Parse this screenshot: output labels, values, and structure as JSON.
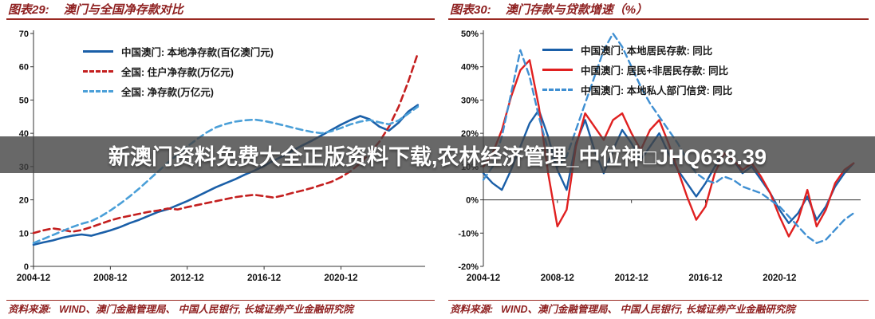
{
  "banner": {
    "text": "新澳门资料免费大全正版资料下载,农林经济管理_中位神□JHQ638.39"
  },
  "panels": [
    {
      "title_prefix": "图表29:",
      "title": "澳门与全国净存款对比",
      "source_prefix": "资料来源:",
      "source_text": "WIND、澳门金融管理局、 中国人民银行, 长城证券产业金融研究院"
    },
    {
      "title_prefix": "图表30:",
      "title": "澳门存款与贷款增速（%）",
      "source_prefix": "资料来源:",
      "source_text": "WIND、澳门金融管理局、 中国人民银行, 长城证券产业金融研究院"
    }
  ],
  "chart_data": [
    {
      "type": "line",
      "title": "澳门与全国净存款对比",
      "x_start": 2004.92,
      "x_step": 0.5,
      "xlim": [
        2004.92,
        2025.3
      ],
      "ylim": [
        0,
        70
      ],
      "yticks": [
        0,
        10,
        20,
        30,
        40,
        50,
        60,
        70
      ],
      "ytick_suffix": "",
      "grid": false,
      "legend_position": "top-left-inside",
      "xticks": [
        {
          "v": 2004.92,
          "label": "2004-12"
        },
        {
          "v": 2008.92,
          "label": "2008-12"
        },
        {
          "v": 2012.92,
          "label": "2012-12"
        },
        {
          "v": 2016.92,
          "label": "2016-12"
        },
        {
          "v": 2020.92,
          "label": "2020-12"
        }
      ],
      "series": [
        {
          "name": "中国澳门: 本地净存款(百亿澳门元)",
          "color": "#1a5fa8",
          "dash": "solid",
          "width": 2.6,
          "values": [
            6.5,
            7.2,
            7.8,
            8.6,
            9.2,
            9.6,
            9.2,
            10.0,
            10.8,
            11.8,
            13.0,
            14.0,
            15.2,
            16.4,
            17.2,
            18.4,
            19.6,
            21.0,
            22.4,
            23.8,
            25.0,
            26.2,
            27.6,
            28.8,
            30.2,
            31.8,
            33.2,
            34.8,
            36.4,
            37.8,
            39.4,
            41.0,
            42.6,
            44.0,
            45.2,
            44.2,
            42.0,
            40.8,
            43.2,
            46.5,
            48.5
          ]
        },
        {
          "name": "全国: 住户净存款(万亿元)",
          "color": "#c41f1f",
          "dash": "dashed",
          "width": 2.6,
          "values": [
            10.0,
            10.8,
            11.4,
            11.0,
            10.4,
            10.9,
            11.8,
            12.8,
            13.8,
            14.6,
            15.2,
            15.8,
            16.4,
            16.8,
            17.4,
            17.1,
            17.8,
            18.4,
            19.0,
            19.6,
            20.2,
            20.8,
            21.2,
            21.5,
            21.1,
            20.7,
            21.3,
            22.1,
            22.8,
            23.6,
            24.5,
            25.4,
            26.8,
            28.6,
            31.0,
            34.0,
            37.5,
            42.0,
            48.0,
            55.5,
            64.0
          ]
        },
        {
          "name": "全国: 净存款(万亿元)",
          "color": "#4a9fd8",
          "dash": "dashed",
          "width": 2.6,
          "values": [
            7.0,
            8.2,
            9.4,
            10.6,
            11.8,
            12.8,
            13.6,
            15.0,
            16.8,
            18.8,
            21.0,
            23.4,
            26.0,
            28.6,
            31.2,
            33.6,
            36.0,
            38.2,
            40.2,
            41.8,
            42.8,
            43.5,
            43.9,
            44.1,
            43.7,
            43.1,
            42.4,
            41.7,
            41.0,
            40.4,
            40.0,
            40.6,
            41.6,
            42.7,
            43.5,
            44.0,
            43.3,
            42.7,
            43.9,
            45.9,
            48.0
          ]
        }
      ]
    },
    {
      "type": "line",
      "title": "澳门存款与贷款增速（%）",
      "x_start": 2004.92,
      "x_step": 0.5,
      "xlim": [
        2004.92,
        2025.3
      ],
      "ylim": [
        -20,
        50
      ],
      "yticks": [
        -20,
        -10,
        0,
        10,
        20,
        30,
        40,
        50
      ],
      "ytick_suffix": "%",
      "grid": false,
      "legend_position": "top-center-inside",
      "xticks": [
        {
          "v": 2004.92,
          "label": "2004-12"
        },
        {
          "v": 2008.92,
          "label": "2008-12"
        },
        {
          "v": 2012.92,
          "label": "2012-12"
        },
        {
          "v": 2016.92,
          "label": "2016-12"
        },
        {
          "v": 2020.92,
          "label": "2020-12"
        }
      ],
      "series": [
        {
          "name": "中国澳门: 本地居民存款: 同比",
          "color": "#1a5fa8",
          "dash": "solid",
          "width": 2.4,
          "values": [
            8,
            5,
            3,
            9,
            16,
            23,
            27,
            19,
            9,
            3,
            17,
            24,
            15,
            8,
            15,
            21,
            17,
            12,
            16,
            20,
            14,
            9,
            5,
            1,
            5,
            10,
            14,
            12,
            8,
            10,
            6,
            2,
            -3,
            -7,
            -4,
            1,
            -6,
            -2,
            4,
            8,
            11
          ]
        },
        {
          "name": "中国澳门: 居民+非居民存款: 同比",
          "color": "#e02020",
          "dash": "solid",
          "width": 2.4,
          "values": [
            10,
            14,
            21,
            31,
            39,
            42,
            28,
            8,
            -8,
            -3,
            16,
            26,
            22,
            18,
            24,
            26,
            20,
            15,
            21,
            24,
            17,
            9,
            1,
            -6,
            -2,
            8,
            14,
            12,
            9,
            11,
            7,
            2,
            -5,
            -11,
            -6,
            3,
            -8,
            -3,
            5,
            9,
            11
          ]
        },
        {
          "name": "中国澳门: 本地私人部门信贷: 同比",
          "color": "#3f8fd2",
          "dash": "dashed",
          "width": 2.4,
          "values": [
            6,
            10,
            19,
            32,
            45,
            37,
            25,
            15,
            10,
            13,
            21,
            29,
            37,
            45,
            50,
            46,
            40,
            34,
            29,
            25,
            21,
            17,
            12,
            8,
            6,
            5,
            7,
            6,
            4,
            3,
            2,
            0,
            -2,
            -5,
            -8,
            -11,
            -13,
            -12,
            -9,
            -6,
            -4
          ]
        }
      ]
    }
  ]
}
